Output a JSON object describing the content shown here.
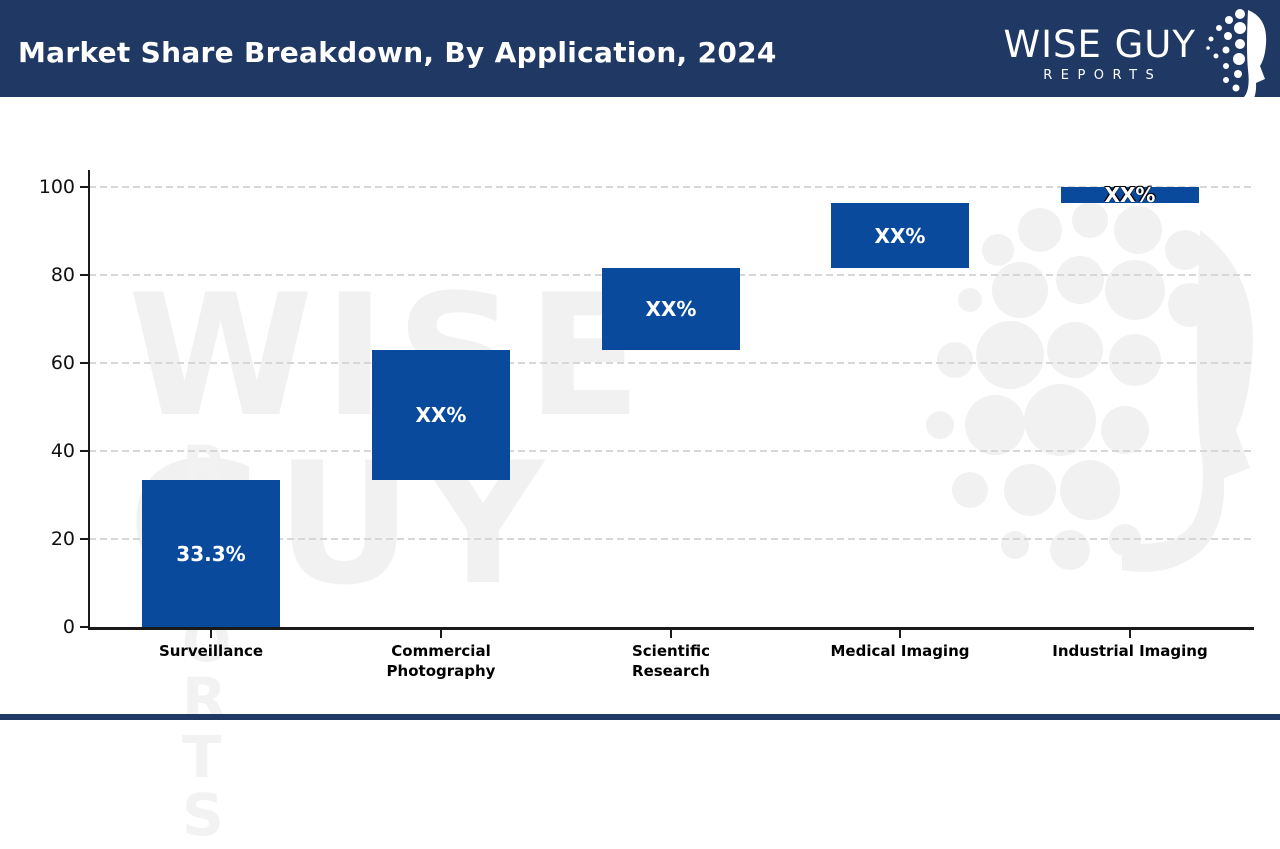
{
  "header": {
    "title": "Market Share Breakdown, By Application, 2024",
    "logo": {
      "brand_line1": "WISE GUY",
      "brand_line2": "REPORTS",
      "head_icon": "dotted-head-profile-icon"
    }
  },
  "chart_data": {
    "type": "waterfall",
    "title": "Market Share Breakdown, By Application, 2024",
    "categories": [
      "Surveillance",
      "Commercial Photography",
      "Scientific Research",
      "Medical Imaging",
      "Industrial Imaging"
    ],
    "segments": [
      {
        "category": "Surveillance",
        "tick_label": "Surveillance",
        "start": 0,
        "end": 33.3,
        "label": "33.3%"
      },
      {
        "category": "Commercial Photography",
        "tick_label": "Commercial\nPhotography",
        "start": 33.3,
        "end": 63.0,
        "label": "XX%"
      },
      {
        "category": "Scientific Research",
        "tick_label": "Scientific\nResearch",
        "start": 63.0,
        "end": 81.5,
        "label": "XX%"
      },
      {
        "category": "Medical Imaging",
        "tick_label": "Medical Imaging",
        "start": 81.5,
        "end": 96.3,
        "label": "XX%"
      },
      {
        "category": "Industrial Imaging",
        "tick_label": "Industrial Imaging",
        "start": 96.3,
        "end": 100,
        "label": "XX%"
      }
    ],
    "xlabel": "",
    "ylabel": "",
    "yticks": [
      0,
      20,
      40,
      60,
      80,
      100
    ],
    "ylim": [
      0,
      104
    ],
    "grid": {
      "axis": "y",
      "style": "dashed",
      "color": "#d7d7d7"
    },
    "legend": "none",
    "bar_color": "#0a4a9c",
    "bar_label_color": "#ffffff",
    "watermark": {
      "line1": "WISE GUY",
      "line2": "R E P O R T S"
    }
  },
  "colors": {
    "header_bg": "#1f3864",
    "footer_bg": "#1f3864",
    "bar": "#0a4a9c",
    "axis": "#1a1a1a",
    "gridline": "#d7d7d7",
    "title_text": "#ffffff",
    "watermark": "#f1f1f2"
  }
}
